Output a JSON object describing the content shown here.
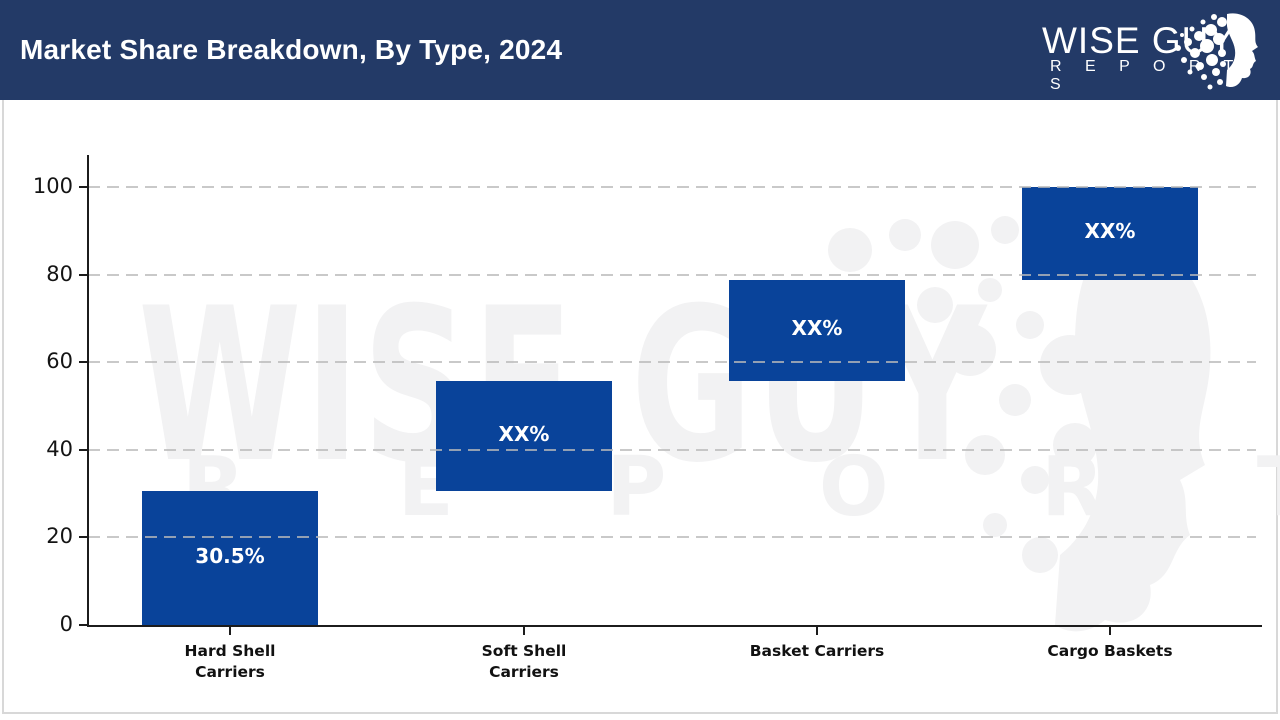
{
  "header": {
    "title": "Market Share Breakdown, By Type, 2024",
    "bg_color": "#233A67",
    "logo": {
      "line1": "WISE GUY",
      "line2": "R E P O R T S"
    }
  },
  "watermark": {
    "line1": "WISE GUY",
    "line2": "R E P O R T S"
  },
  "chart_data": {
    "type": "bar",
    "subtype": "waterfall",
    "title": "Market Share Breakdown, By Type, 2024",
    "categories": [
      "Hard Shell\nCarriers",
      "Soft Shell\nCarriers",
      "Basket Carriers",
      "Cargo Baskets"
    ],
    "series": [
      {
        "name": "Market Share",
        "segments": [
          {
            "category": "Hard Shell Carriers",
            "start": 0,
            "end": 30.5,
            "label": "30.5%"
          },
          {
            "category": "Soft Shell Carriers",
            "start": 30.5,
            "end": 55.8,
            "label": "XX%"
          },
          {
            "category": "Basket Carriers",
            "start": 55.8,
            "end": 78.8,
            "label": "XX%"
          },
          {
            "category": "Cargo Baskets",
            "start": 78.8,
            "end": 100,
            "label": "XX%"
          }
        ]
      }
    ],
    "xlabel": "",
    "ylabel": "",
    "ylim": [
      0,
      100
    ],
    "yticks": [
      0,
      20,
      40,
      60,
      80,
      100
    ],
    "grid": "horizontal-dashed",
    "legend": "none",
    "bar_color": "#09439A",
    "bar_label_color": "#ffffff",
    "axis_color": "#1c1c1c"
  }
}
